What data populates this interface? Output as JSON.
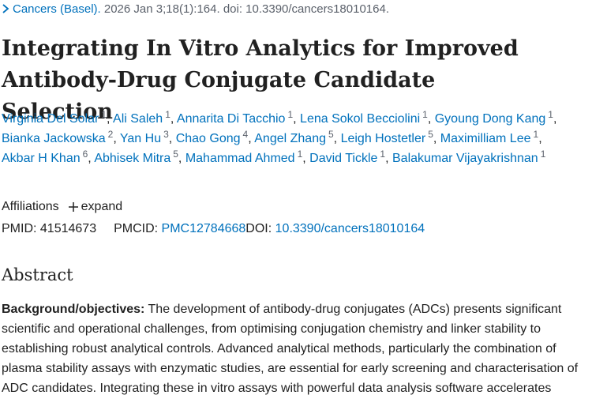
{
  "citation": {
    "journal": "Cancers (Basel).",
    "details": "2026 Jan 3;18(1):164. doi: 10.3390/cancers18010164."
  },
  "title": "Integrating In Vitro Analytics for Improved Antibody-Drug Conjugate Candidate Selection",
  "authors": [
    {
      "name": "Virginia Del Solar",
      "affiliation": "1",
      "separator": ","
    },
    {
      "name": "Ali Saleh",
      "affiliation": "1",
      "separator": ","
    },
    {
      "name": "Annarita Di Tacchio",
      "affiliation": "1",
      "separator": ","
    },
    {
      "name": "Lena Sokol Becciolini",
      "affiliation": "1",
      "separator": ","
    },
    {
      "name": "Gyoung Dong Kang",
      "affiliation": "1",
      "separator": ","
    },
    {
      "name": "Bianka Jackowska",
      "affiliation": "2",
      "separator": ","
    },
    {
      "name": "Yan Hu",
      "affiliation": "3",
      "separator": ","
    },
    {
      "name": "Chao Gong",
      "affiliation": "4",
      "separator": ","
    },
    {
      "name": "Angel Zhang",
      "affiliation": "5",
      "separator": ","
    },
    {
      "name": "Leigh Hostetler",
      "affiliation": "5",
      "separator": ","
    },
    {
      "name": "Maximilliam Lee",
      "affiliation": "1",
      "separator": ","
    },
    {
      "name": "Akbar H Khan",
      "affiliation": "6",
      "separator": ","
    },
    {
      "name": "Abhisek Mitra",
      "affiliation": "5",
      "separator": ","
    },
    {
      "name": "Mahammad Ahmed",
      "affiliation": "1",
      "separator": ","
    },
    {
      "name": "David Tickle",
      "affiliation": "1",
      "separator": ","
    },
    {
      "name": "Balakumar Vijayakrishnan",
      "affiliation": "1"
    }
  ],
  "affiliations": {
    "label": "Affiliations",
    "toggle": "expand"
  },
  "identifiers": {
    "pmid_label": "PMID:",
    "pmid": "41514673",
    "pmcid_label": "PMCID:",
    "pmcid": "PMC12784668",
    "doi_label": "DOI:",
    "doi": "10.3390/cancers18010164"
  },
  "abstract": {
    "heading": "Abstract",
    "label": "Background/objectives:",
    "text": "The development of antibody-drug conjugates (ADCs) presents significant scientific and operational challenges, from optimising conjugation chemistry and linker stability to establishing robust analytical controls. Advanced analytical methods, particularly the combination of plasma stability assays with enzymatic studies, are essential for early screening and characterisation of ADC candidates. Integrating these in vitro assays with powerful data analysis software accelerates"
  }
}
